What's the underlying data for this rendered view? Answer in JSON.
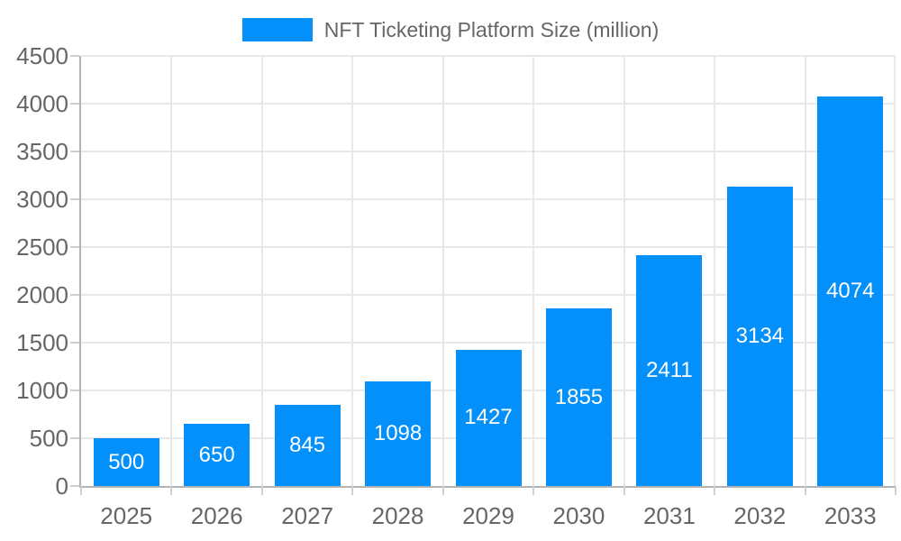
{
  "legend": {
    "label": "NFT Ticketing Platform Size (million)"
  },
  "colors": {
    "bar": "#0490FA",
    "axis_text": "#666666",
    "grid_line": "#e8e8e8",
    "axis_line": "#b3b3b3",
    "tick_mark": "#cfcfcf",
    "data_label": "#ffffff",
    "background": "#ffffff"
  },
  "chart_data": {
    "type": "bar",
    "title": "NFT Ticketing Platform Size (million)",
    "categories": [
      "2025",
      "2026",
      "2027",
      "2028",
      "2029",
      "2030",
      "2031",
      "2032",
      "2033"
    ],
    "values": [
      500,
      650,
      845,
      1098,
      1427,
      1855,
      2411,
      3134,
      4074
    ],
    "xlabel": "",
    "ylabel": "",
    "ylim": [
      0,
      4500
    ],
    "ytick_step": 500,
    "ytick_labels": [
      "0",
      "500",
      "1000",
      "1500",
      "2000",
      "2500",
      "3000",
      "3500",
      "4000",
      "4500"
    ],
    "grid": true,
    "legend_position": "top-center",
    "data_label_style": "white, centered inside bar"
  }
}
